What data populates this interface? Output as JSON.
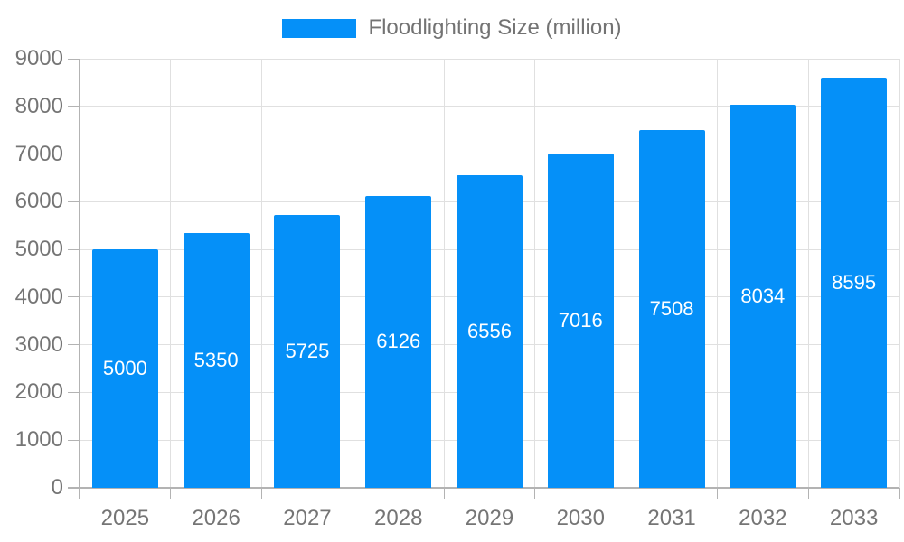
{
  "chart_data": {
    "type": "bar",
    "title": "",
    "categories": [
      "2025",
      "2026",
      "2027",
      "2028",
      "2029",
      "2030",
      "2031",
      "2032",
      "2033"
    ],
    "series": [
      {
        "name": "Floodlighting Size (million)",
        "values": [
          5000,
          5350,
          5725,
          6126,
          6556,
          7016,
          7508,
          8034,
          8595
        ]
      }
    ],
    "xlabel": "",
    "ylabel": "",
    "ylim": [
      0,
      9000
    ],
    "ytick_step": 1000,
    "grid": true,
    "legend_position": "top",
    "bar_labels_inside": true,
    "colors": {
      "bar": "#0590f8",
      "grid": "#e0e0e0",
      "axis": "#b3b3b3",
      "tick_label": "#757575",
      "legend_text": "#737373",
      "bar_label": "#ffffff",
      "background": "#ffffff"
    }
  }
}
